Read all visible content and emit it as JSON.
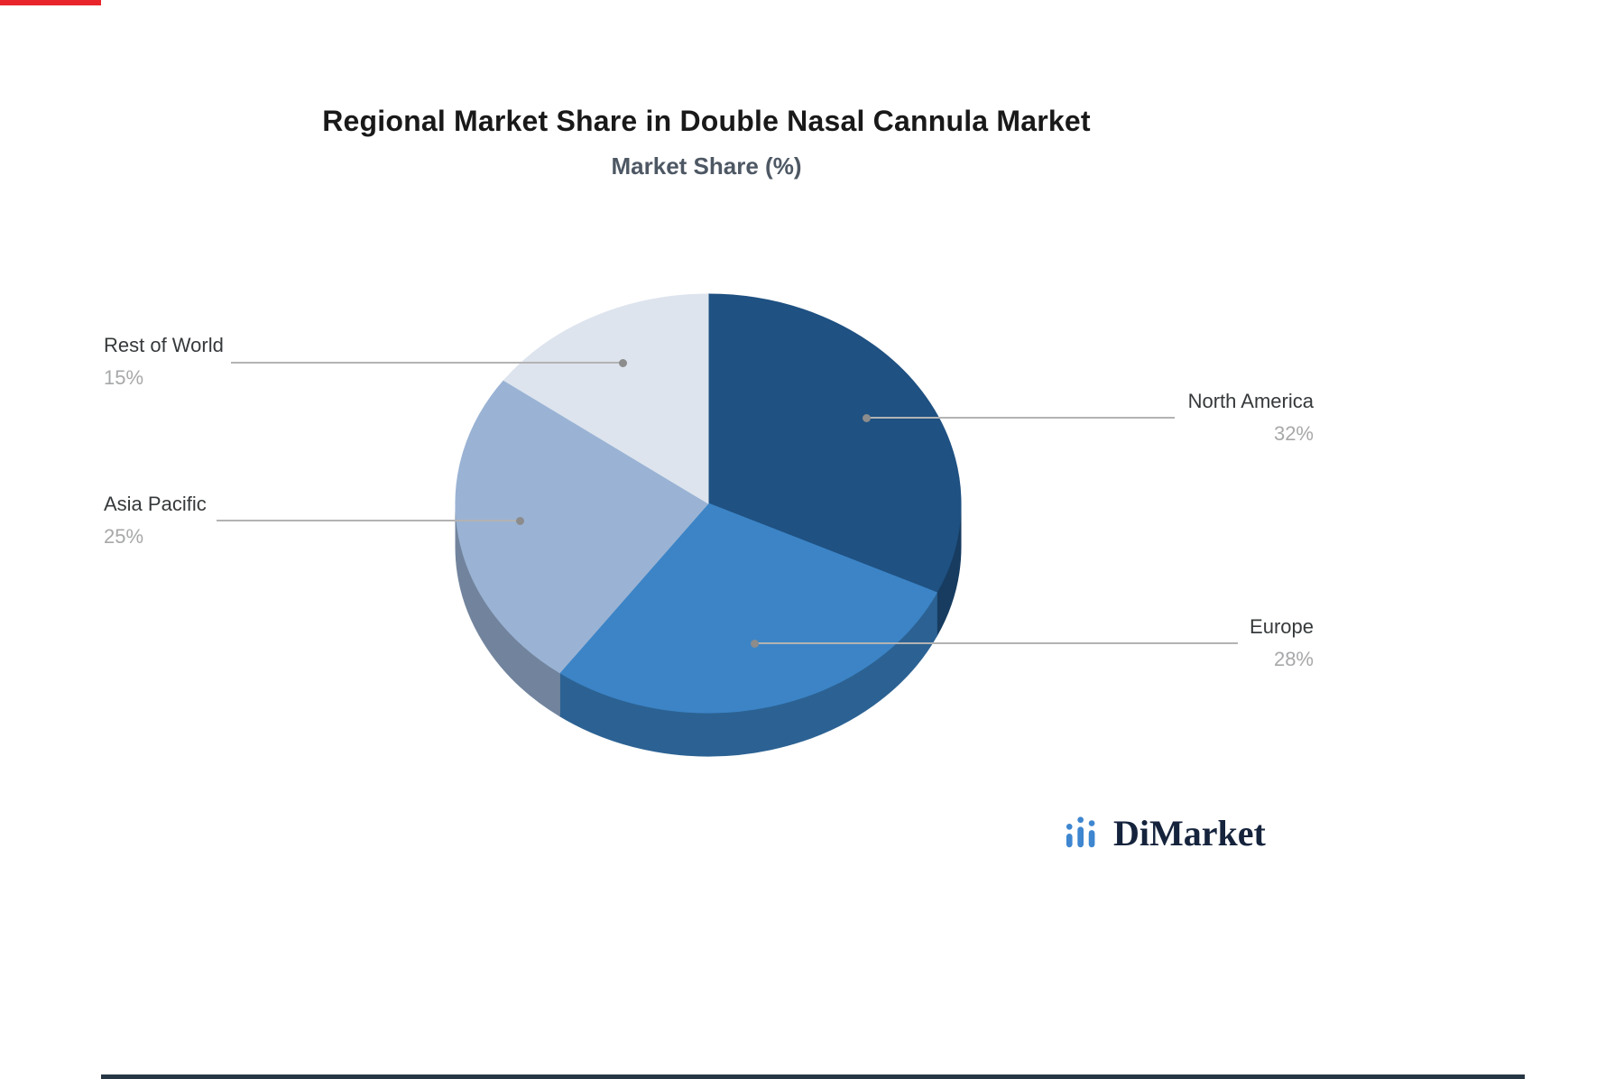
{
  "chart_data": {
    "type": "pie",
    "title": "Regional Market Share in Double Nasal Cannula Market",
    "subtitle": "Market Share (%)",
    "unit": "%",
    "direction": "clockwise",
    "start_angle_deg": 0,
    "effect": "3d-depth",
    "legend_position": "none",
    "label_style": "external-callouts",
    "slices": [
      {
        "label": "North America",
        "value": 32,
        "display": "32%",
        "color": "#1F5182"
      },
      {
        "label": "Europe",
        "value": 28,
        "display": "28%",
        "color": "#3C84C6"
      },
      {
        "label": "Asia Pacific",
        "value": 25,
        "display": "25%",
        "color": "#9AB3D4"
      },
      {
        "label": "Rest of World",
        "value": 15,
        "display": "15%",
        "color": "#DDE4EE"
      }
    ]
  },
  "brand": {
    "name": "DiMarket",
    "icon": "bar-chart-icon",
    "icon_color": "#3E86D0",
    "text_color": "#15233C"
  },
  "colors": {
    "background": "#FFFFFF",
    "title": "#191919",
    "subtitle": "#4E5864",
    "label_text": "#36393B",
    "value_text": "#A6A8AA",
    "leader_line": "#B3B3B3",
    "leader_dot": "#8C8C8C",
    "accent_top": "#E8252B",
    "accent_bottom": "#273644"
  }
}
